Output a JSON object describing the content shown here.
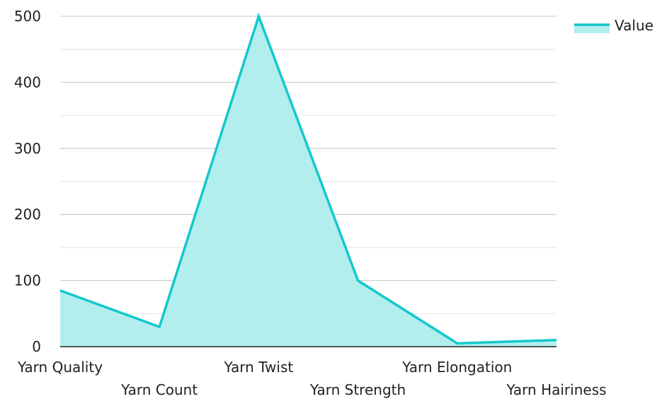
{
  "chart_data": {
    "type": "area",
    "categories": [
      "Yarn Quality",
      "Yarn Count",
      "Yarn Twist",
      "Yarn Strength",
      "Yarn Elongation",
      "Yarn Hairiness"
    ],
    "series": [
      {
        "name": "Value",
        "values": [
          85,
          30,
          500,
          100,
          5,
          10
        ]
      }
    ],
    "title": "",
    "xlabel": "",
    "ylabel": "",
    "ylim": [
      0,
      500
    ],
    "yticks": [
      0,
      100,
      200,
      300,
      400,
      500
    ],
    "grid": true,
    "legend_position": "top-right",
    "colors": {
      "line": "#14c8cc",
      "fill": "#b2eeee",
      "grid": "#cccccc",
      "axis": "#222222"
    }
  }
}
